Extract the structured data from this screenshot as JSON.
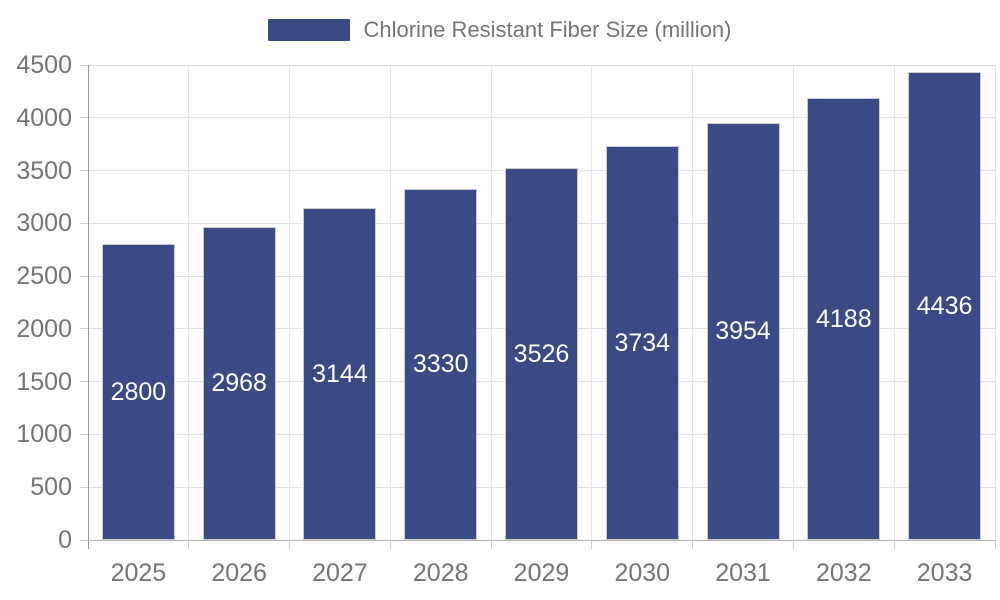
{
  "legend": {
    "label": "Chlorine Resistant Fiber Size (million)"
  },
  "colors": {
    "bar": "#3a4a85",
    "bar_border": "#cccccc",
    "bar_label": "#ffffff",
    "grid_horizontal": "#e0e0e0",
    "grid_vertical": "#e8e8e8",
    "axis_line": "#999999",
    "tick_mark": "#cccccc",
    "baseline": "#b3b3b3",
    "tick_label_text": "#757575",
    "background": "#ffffff"
  },
  "chart_data": {
    "type": "bar",
    "title": "Chlorine Resistant Fiber Size (million)",
    "xlabel": "",
    "ylabel": "",
    "categories": [
      "2025",
      "2026",
      "2027",
      "2028",
      "2029",
      "2030",
      "2031",
      "2032",
      "2033"
    ],
    "values": [
      2800,
      2968,
      3144,
      3330,
      3526,
      3734,
      3954,
      4188,
      4436
    ],
    "series_name": "Chlorine Resistant Fiber Size (million)",
    "ylim": [
      0,
      4500
    ],
    "ytick_step": 500,
    "yticks": [
      "0",
      "500",
      "1000",
      "1500",
      "2000",
      "2500",
      "3000",
      "3500",
      "4000",
      "4500"
    ],
    "grid": true,
    "legend_position": "top",
    "bar_value_labels_inside": true
  }
}
